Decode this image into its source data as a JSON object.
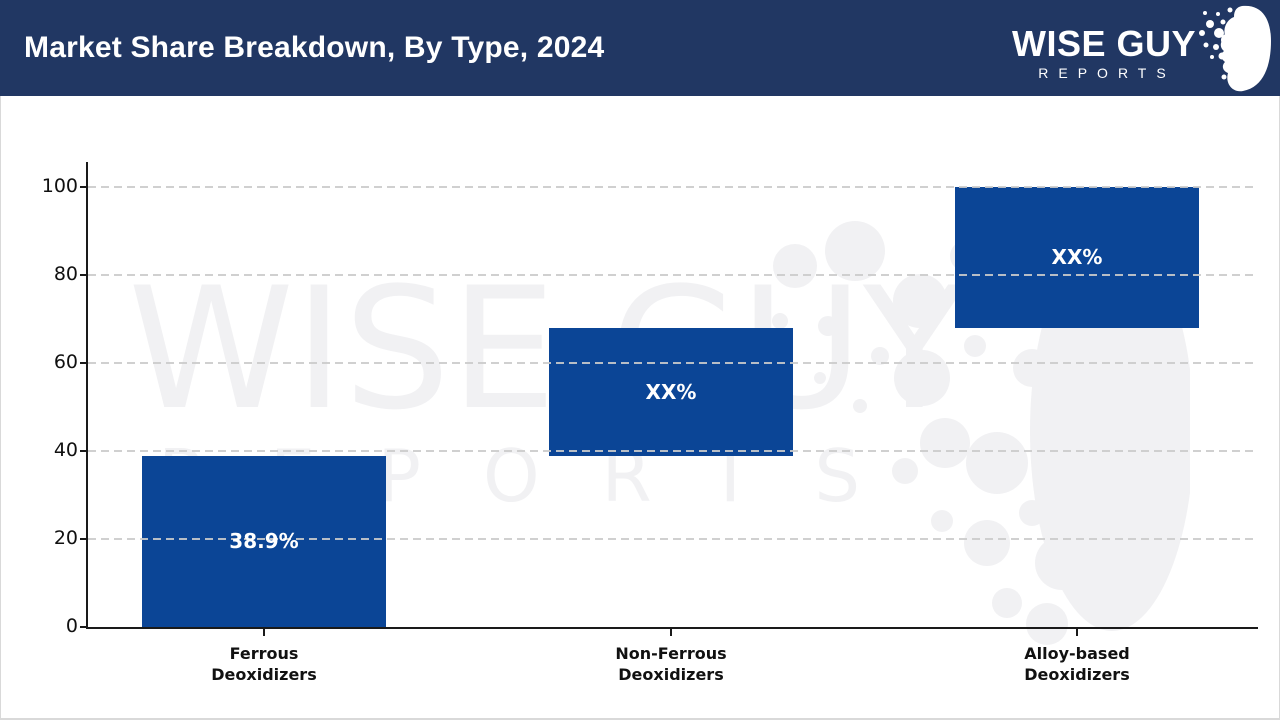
{
  "header": {
    "title": "Market Share Breakdown, By Type, 2024",
    "bg_color": "#213763",
    "logo": {
      "name_top": "WISE GUY",
      "name_bottom": "REPORTS"
    }
  },
  "watermark": {
    "line1": "WISE GUY",
    "line2": "REPORTS"
  },
  "chart_data": {
    "type": "bar",
    "subtype": "waterfall",
    "title": "Market Share Breakdown, By Type, 2024",
    "categories": [
      "Ferrous Deoxidizers",
      "Non-Ferrous Deoxidizers",
      "Alloy-based Deoxidizers"
    ],
    "series": [
      {
        "name": "Market share (%)",
        "segments": [
          {
            "category_lines": [
              "Ferrous",
              "Deoxidizers"
            ],
            "start": 0,
            "end": 38.9,
            "label": "38.9%"
          },
          {
            "category_lines": [
              "Non-Ferrous",
              "Deoxidizers"
            ],
            "start": 38.9,
            "end": 68,
            "label": "XX%"
          },
          {
            "category_lines": [
              "Alloy-based",
              "Deoxidizers"
            ],
            "start": 68,
            "end": 100,
            "label": "XX%"
          }
        ]
      }
    ],
    "xlabel": "",
    "ylabel": "",
    "ylim": [
      0,
      100
    ],
    "yticks": [
      0,
      20,
      40,
      60,
      80,
      100
    ],
    "grid": "horizontal-dashed",
    "legend": "none",
    "bar_color": "#0b4596",
    "value_label_color": "#ffffff",
    "grid_color": "#cbcbcb",
    "axis_color": "#1a1a1a"
  }
}
